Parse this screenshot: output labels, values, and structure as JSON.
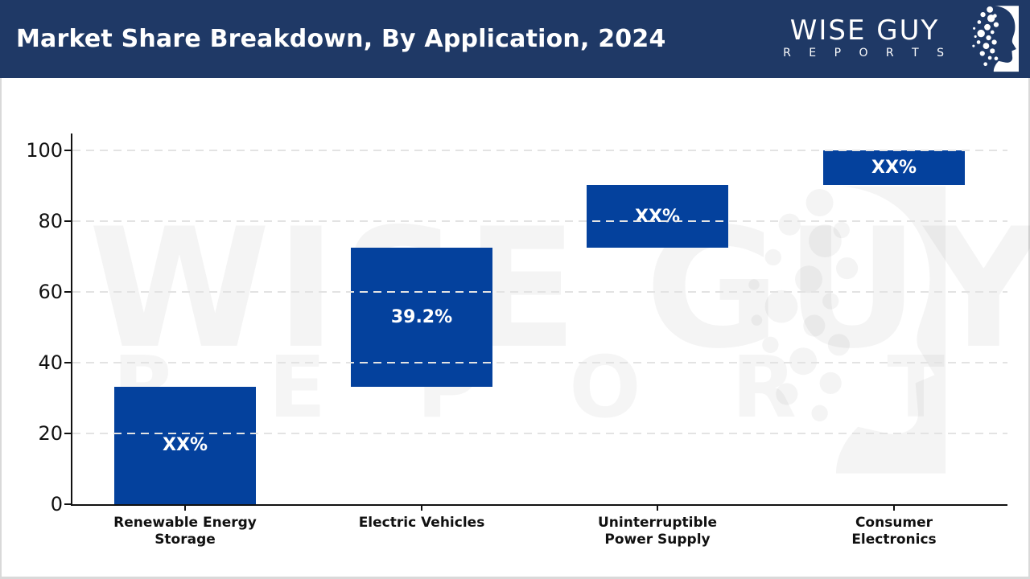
{
  "header": {
    "title": "Market Share Breakdown, By Application, 2024",
    "bg_color": "#1f3966",
    "brand": {
      "line1": "WISE GUY",
      "line2": "R E P O R T S"
    }
  },
  "watermark": {
    "line1": "WISE GUY",
    "line2": "R E P O R T S"
  },
  "chart_data": {
    "type": "bar",
    "subtype": "waterfall",
    "title": "Market Share Breakdown, By Application, 2024",
    "categories": [
      "Renewable Energy Storage",
      "Electric Vehicles",
      "Uninterruptible Power Supply",
      "Consumer Electronics"
    ],
    "category_lines": [
      [
        "Renewable Energy",
        "Storage"
      ],
      [
        "Electric Vehicles"
      ],
      [
        "Uninterruptible",
        "Power Supply"
      ],
      [
        "Consumer",
        "Electronics"
      ]
    ],
    "segments": [
      {
        "category": "Renewable Energy Storage",
        "start": 0,
        "end": 33.2,
        "label": "XX%"
      },
      {
        "category": "Electric Vehicles",
        "start": 33.2,
        "end": 72.4,
        "label": "39.2%"
      },
      {
        "category": "Uninterruptible Power Supply",
        "start": 72.4,
        "end": 90.3,
        "label": "XX%"
      },
      {
        "category": "Consumer Electronics",
        "start": 90.3,
        "end": 100,
        "label": "XX%"
      }
    ],
    "ylim": [
      0,
      100
    ],
    "yticks": [
      0,
      20,
      40,
      60,
      80,
      100
    ],
    "xlabel": "",
    "ylabel": "",
    "legend": "none",
    "grid": "horizontal-dashed-over-bars",
    "bar_color": "#04419d",
    "bar_label_color": "#ffffff",
    "axis_color": "#111111"
  }
}
